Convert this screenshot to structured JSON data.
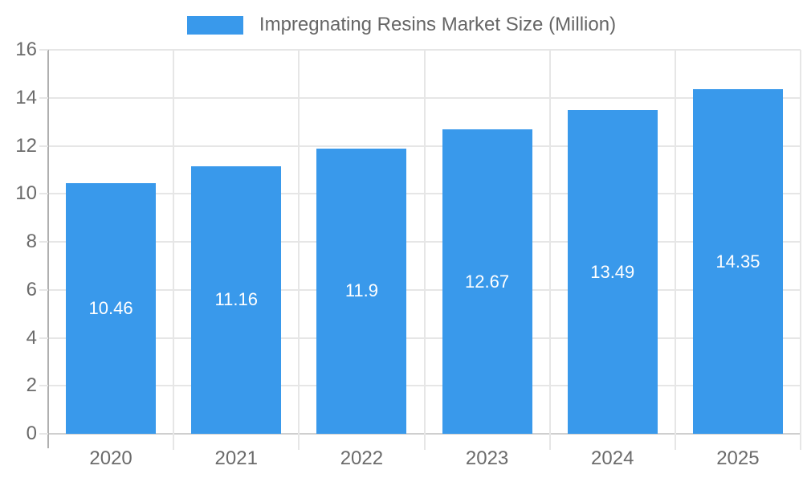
{
  "legend": {
    "series_label": "Impregnating Resins Market Size (Million)"
  },
  "chart_data": {
    "type": "bar",
    "title": "Impregnating Resins Market Size (Million)",
    "categories": [
      "2020",
      "2021",
      "2022",
      "2023",
      "2024",
      "2025"
    ],
    "values": [
      10.46,
      11.16,
      11.9,
      12.67,
      13.49,
      14.35
    ],
    "value_labels": [
      "10.46",
      "11.16",
      "11.9",
      "12.67",
      "13.49",
      "14.35"
    ],
    "xlabel": "",
    "ylabel": "",
    "ylim": [
      0,
      16
    ],
    "yticks": [
      0,
      2,
      4,
      6,
      8,
      10,
      12,
      14,
      16
    ],
    "ytick_labels": [
      "0",
      "2",
      "4",
      "6",
      "8",
      "10",
      "12",
      "14",
      "16"
    ],
    "grid": true,
    "legend_position": "top",
    "colors": {
      "bar": "#3999EB",
      "bar_value_text": "#ffffff",
      "axis_text": "#6b6b6b",
      "legend_text": "#666666",
      "gridline": "#e6e6e6",
      "zero_line": "#cfcfcf",
      "axis_line": "#b0b0b0",
      "background": "#ffffff"
    }
  }
}
